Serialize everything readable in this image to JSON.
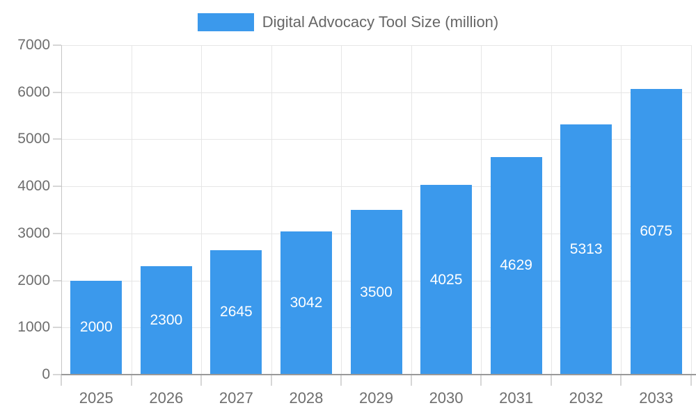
{
  "legend": {
    "label": "Digital Advocacy Tool Size (million)"
  },
  "colors": {
    "bar": "#3B99EC",
    "bar_value_text": "#FFFFFF",
    "axis_text": "#6E6E6E",
    "gridline": "#E6E6E6",
    "axis_line": "#999999"
  },
  "chart_data": {
    "type": "bar",
    "title": "Digital Advocacy Tool Size (million)",
    "series": [
      {
        "name": "Digital Advocacy Tool Size (million)",
        "values": [
          2000,
          2300,
          2645,
          3042,
          3500,
          4025,
          4629,
          5313,
          6075
        ]
      }
    ],
    "categories": [
      "2025",
      "2026",
      "2027",
      "2028",
      "2029",
      "2030",
      "2031",
      "2032",
      "2033"
    ],
    "value_labels_shown": true,
    "xlabel": "",
    "ylabel": "",
    "ylim": [
      0,
      7000
    ],
    "ytick_step": 1000,
    "yticks": [
      0,
      1000,
      2000,
      3000,
      4000,
      5000,
      6000,
      7000
    ],
    "grid": "both",
    "legend_position": "top"
  }
}
